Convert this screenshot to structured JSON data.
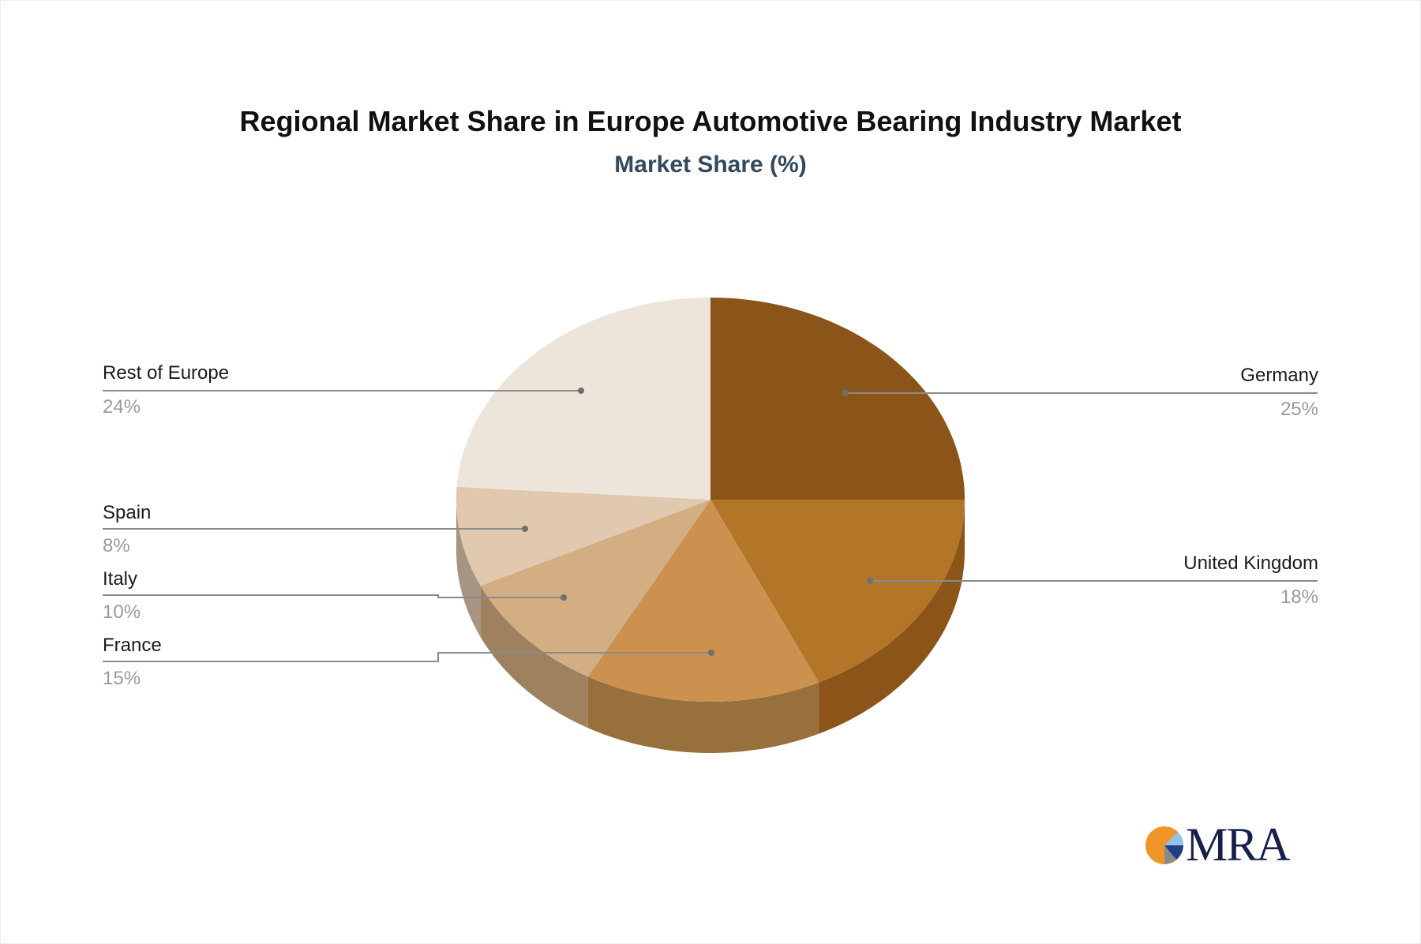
{
  "title": "Regional Market Share in Europe Automotive Bearing Industry Market",
  "subtitle": "Market Share (%)",
  "logo": {
    "text": "MRA",
    "icon": "pie-logo-icon"
  },
  "chart_data": {
    "type": "pie",
    "style": "3d",
    "title": "Regional Market Share in Europe Automotive Bearing Industry Market",
    "subtitle": "Market Share (%)",
    "categories": [
      "Germany",
      "United Kingdom",
      "France",
      "Italy",
      "Spain",
      "Rest of Europe"
    ],
    "values": [
      25,
      18,
      15,
      10,
      8,
      24
    ],
    "labels": [
      "25%",
      "18%",
      "15%",
      "10%",
      "8%",
      "24%"
    ],
    "colors": [
      "#8b5519",
      "#b37528",
      "#cc914e",
      "#d4ae83",
      "#e0c9af",
      "#ede4da"
    ],
    "side_colors": [
      "#8b5519",
      "#8b5519",
      "#98703b",
      "#9f8160",
      "#a69582",
      "#a69582"
    ],
    "legend_position": "callouts"
  }
}
